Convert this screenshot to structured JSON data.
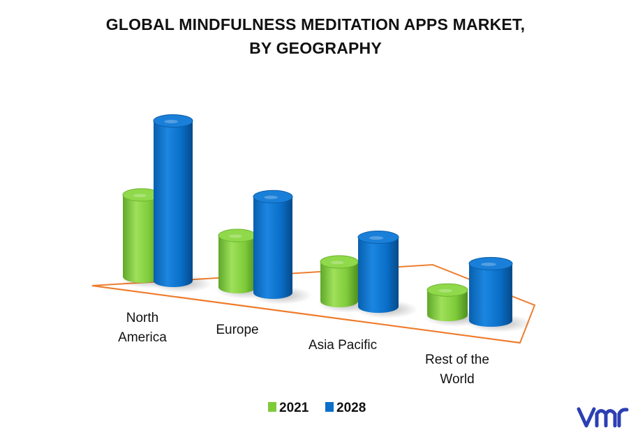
{
  "title_lines": [
    "GLOBAL MINDFULNESS MEDITATION APPS MARKET,",
    "BY GEOGRAPHY"
  ],
  "colors": {
    "2021": "#7ecb3a",
    "2028": "#0a6fc9",
    "floor_outline": "#ee7d2e"
  },
  "chart_data": {
    "type": "bar",
    "categories": [
      "North America",
      "Europe",
      "Asia Pacific",
      "Rest of the World"
    ],
    "category_label_lines": [
      [
        "North",
        "America"
      ],
      [
        "Europe"
      ],
      [
        "Asia Pacific"
      ],
      [
        "Rest of the",
        "World"
      ]
    ],
    "series": [
      {
        "name": "2021",
        "values": [
          4.6,
          2.9,
          2.2,
          1.4
        ]
      },
      {
        "name": "2028",
        "values": [
          9.0,
          5.4,
          3.9,
          3.2
        ]
      }
    ],
    "xlabel": "",
    "ylabel": "",
    "ylim": [
      0,
      10
    ],
    "grid": false,
    "legend_position": "bottom"
  },
  "logo_text": "vmr"
}
